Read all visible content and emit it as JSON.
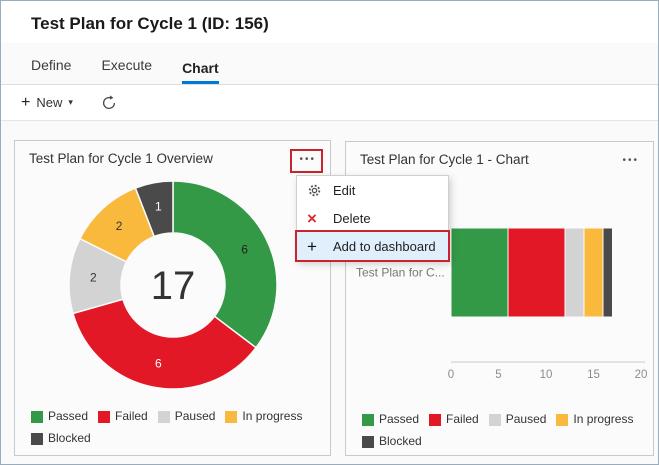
{
  "page": {
    "title": "Test Plan for Cycle 1 (ID: 156)"
  },
  "tabs": [
    {
      "label": "Define",
      "active": false
    },
    {
      "label": "Execute",
      "active": false
    },
    {
      "label": "Chart",
      "active": true
    }
  ],
  "toolbar": {
    "new_label": "New",
    "plus_icon": "+",
    "caret_icon": "▾",
    "refresh_icon_name": "refresh-icon"
  },
  "colors": {
    "accent": "#0078d4",
    "passed": "#339947",
    "failed": "#e21826",
    "paused": "#d3d3d3",
    "in_progress": "#f9b93d",
    "blocked": "#4a4a4a",
    "annotation_red": "#c8242e",
    "menu_highlight": "#e0effb",
    "delete_red": "#d02e2e",
    "axis_gray": "#8c8c8c"
  },
  "widgets": [
    {
      "title": "Test Plan for Cycle 1 Overview",
      "menu_icon": "•••",
      "menu_annotated": true
    },
    {
      "title": "Test Plan for Cycle 1 - Chart",
      "menu_icon": "•••",
      "menu_annotated": false
    }
  ],
  "context_menu": {
    "items": [
      {
        "label": "Edit",
        "icon": "gear-icon",
        "highlighted": false
      },
      {
        "label": "Delete",
        "icon": "delete-icon",
        "highlighted": false
      },
      {
        "label": "Add to dashboard",
        "icon": "plus-icon",
        "highlighted": true
      }
    ]
  },
  "chart_data": [
    {
      "type": "pie",
      "subtype": "donut",
      "title": "Test Plan for Cycle 1 Overview",
      "center_total": "17",
      "start_angle_deg": 0,
      "slices": [
        {
          "label": "Passed",
          "value": 6,
          "color": "#339947",
          "label_color": "#222222"
        },
        {
          "label": "Failed",
          "value": 6,
          "color": "#e21826",
          "label_color": "#ffffff"
        },
        {
          "label": "Paused",
          "value": 2,
          "color": "#d3d3d3",
          "label_color": "#333333"
        },
        {
          "label": "In progress",
          "value": 2,
          "color": "#f9b93d",
          "label_color": "#333333"
        },
        {
          "label": "Blocked",
          "value": 1,
          "color": "#4a4a4a",
          "label_color": "#ffffff"
        }
      ],
      "legend_position": "bottom"
    },
    {
      "type": "bar",
      "subtype": "horizontal-stacked",
      "title": "Test Plan for Cycle 1 - Chart",
      "category_label": "Test Plan for C...",
      "series": [
        {
          "name": "Passed",
          "value": 6,
          "color": "#339947"
        },
        {
          "name": "Failed",
          "value": 6,
          "color": "#e21826"
        },
        {
          "name": "Paused",
          "value": 2,
          "color": "#d3d3d3"
        },
        {
          "name": "In progress",
          "value": 2,
          "color": "#f9b93d"
        },
        {
          "name": "Blocked",
          "value": 1,
          "color": "#4a4a4a"
        }
      ],
      "xlim": [
        0,
        20
      ],
      "xticks": [
        0,
        5,
        10,
        15,
        20
      ],
      "legend_position": "bottom"
    }
  ]
}
